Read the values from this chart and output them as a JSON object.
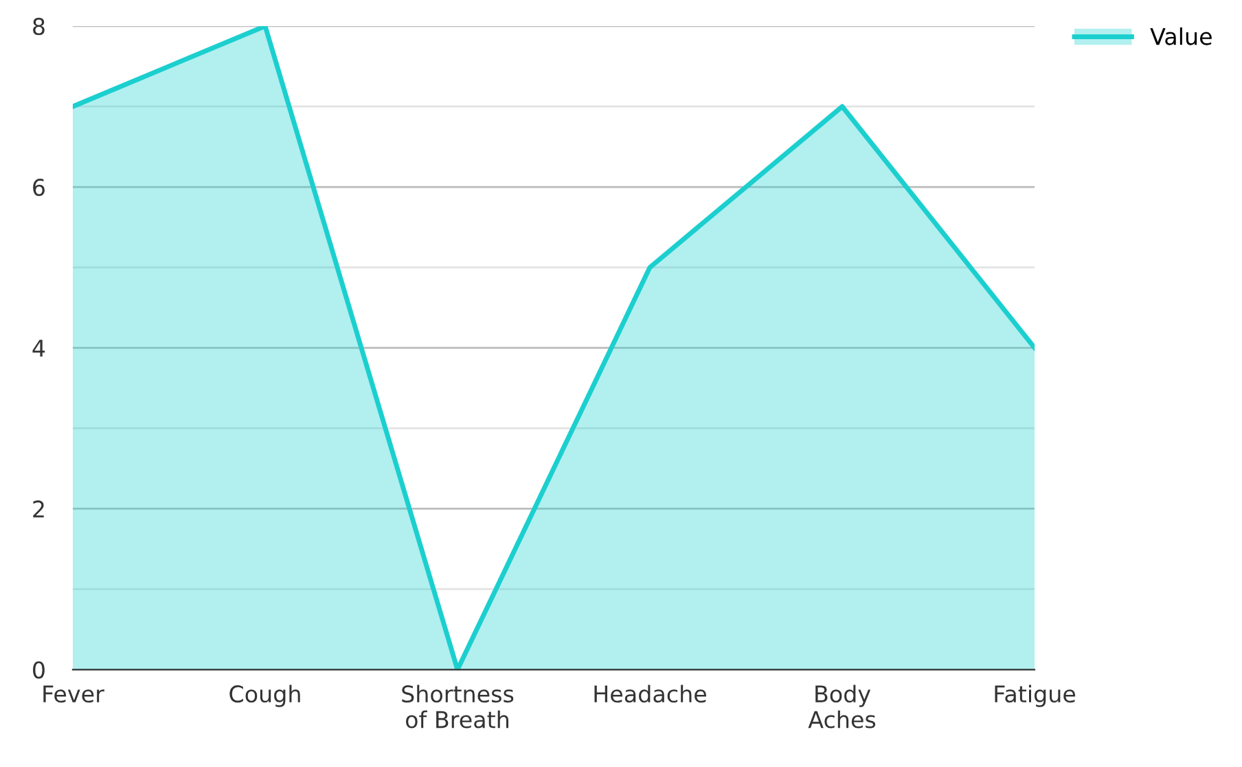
{
  "chart_data": {
    "type": "area",
    "categories": [
      "Fever",
      "Cough",
      "Shortness\nof Breath",
      "Headache",
      "Body\nAches",
      "Fatigue"
    ],
    "series": [
      {
        "name": "Value",
        "color": "#1ccfcf",
        "values": [
          7,
          8,
          0,
          5,
          7,
          4
        ]
      }
    ],
    "ylim": [
      0,
      8
    ],
    "yticks": [
      0,
      {
        "value": 1,
        "label": null
      },
      2,
      {
        "value": 3,
        "label": null
      },
      4,
      {
        "value": 5,
        "label": null
      },
      6,
      {
        "value": 7,
        "label": null
      },
      8
    ],
    "grid": "y",
    "legend": "top right"
  }
}
